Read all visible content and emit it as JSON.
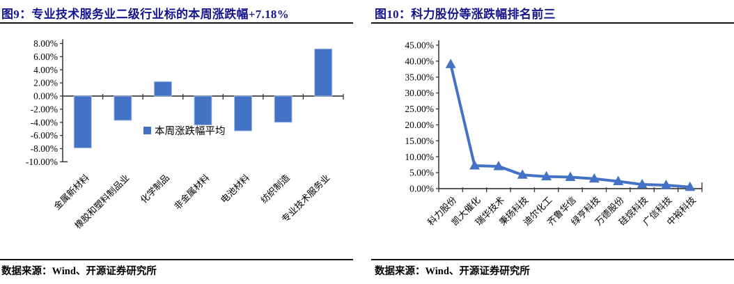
{
  "colors": {
    "accent_blue": "#4472C4",
    "bar_edge_highlight": "#A9C1E8",
    "title_navy": "#15158D",
    "rule_black": "#141414",
    "axis_gray": "#3F3F3F",
    "text_black": "#000000"
  },
  "chart_data": [
    {
      "type": "bar",
      "figure_label": "图9",
      "title": "图9：专业技术服务业二级行业标的本周涨跌幅+7.18%",
      "source": "数据来源：Wind、开源证券研究所",
      "legend_label": "本周涨跌幅平均",
      "legend_position": "inside-center",
      "grid": false,
      "categories": [
        "金属新材料",
        "橡胶和塑料制品业",
        "化学制品",
        "非金属材料",
        "电池材料",
        "纺织制造",
        "专业技术服务业"
      ],
      "values": [
        -7.9,
        -3.7,
        2.2,
        -4.4,
        -5.3,
        -4.0,
        7.18
      ],
      "xlabel": "",
      "ylabel": "",
      "ylim": [
        -10,
        8
      ],
      "y_tick_values": [
        8,
        6,
        4,
        2,
        0,
        -2,
        -4,
        -6,
        -8,
        -10
      ],
      "y_tick_labels": [
        "8.00%",
        "6.00%",
        "4.00%",
        "2.00%",
        "0.00%",
        "-2.00%",
        "-4.00%",
        "-6.00%",
        "-8.00%",
        "-10.00%"
      ]
    },
    {
      "type": "line",
      "figure_label": "图10",
      "title": "图10：科力股份等涨跌幅排名前三",
      "source": "数据来源：Wind、开源证券研究所",
      "marker": "triangle",
      "grid": false,
      "legend_position": "none",
      "categories": [
        "科力股份",
        "凯大催化",
        "瑞华技术",
        "秉扬科技",
        "迪尔化工",
        "齐鲁华信",
        "绿亨科技",
        "万德股份",
        "硅烷科技",
        "广信科技",
        "中裕科技"
      ],
      "values": [
        39.0,
        7.2,
        7.0,
        4.3,
        3.8,
        3.6,
        3.1,
        2.3,
        1.3,
        1.1,
        0.5
      ],
      "xlabel": "",
      "ylabel": "",
      "ylim": [
        0,
        45
      ],
      "y_tick_values": [
        45,
        40,
        35,
        30,
        25,
        20,
        15,
        10,
        5,
        0
      ],
      "y_tick_labels": [
        "45.00%",
        "40.00%",
        "35.00%",
        "30.00%",
        "25.00%",
        "20.00%",
        "15.00%",
        "10.00%",
        "5.00%",
        "0.00%"
      ]
    }
  ]
}
